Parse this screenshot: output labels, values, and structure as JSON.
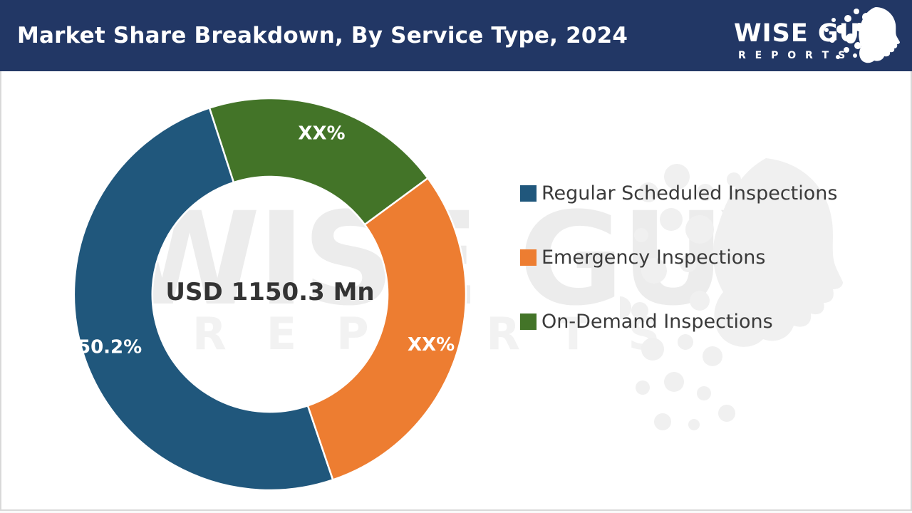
{
  "header": {
    "title": "Market Share Breakdown, By Service Type, 2024",
    "logo": {
      "wordmark": "WISE GUY",
      "subtext": "R E P O R T S"
    }
  },
  "watermark": {
    "wordmark": "WISE GUY",
    "subtext": "REPORTS"
  },
  "chart_data": {
    "type": "pie",
    "subtype": "donut",
    "title": "Market Share Breakdown, By Service Type, 2024",
    "center_label": "USD 1150.3 Mn",
    "start_angle_deg": 108,
    "direction": "counterclockwise",
    "inner_radius_ratio": 0.6,
    "legend_position": "right",
    "segments": [
      {
        "label": "Regular Scheduled Inspections",
        "value_pct": 50.2,
        "display": "50.2%",
        "color": "#20577C"
      },
      {
        "label": "Emergency Inspections",
        "value_pct": 29.9,
        "display": "XX%",
        "color": "#ED7D31"
      },
      {
        "label": "On-Demand Inspections",
        "value_pct": 19.9,
        "display": "XX%",
        "color": "#437428"
      }
    ]
  },
  "palette": {
    "header_bg": "#223765",
    "center_text": "#333333",
    "legend_text": "#3A3A3A",
    "watermark_gray": "#ECECEC",
    "card_border": "#D9D9D9",
    "wedge_edge": "#FFFFFF"
  }
}
